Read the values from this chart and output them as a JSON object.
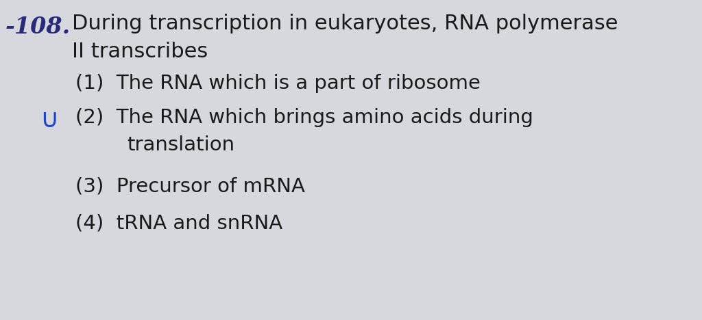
{
  "background_color": "#d6d8de",
  "q_number_text": "-108.",
  "q_number_color": "#2a2a7a",
  "title_line1": "During transcription in eukaryotes, RNA polymerase",
  "title_line2": "II transcribes",
  "option1": "(1)  The RNA which is a part of ribosome",
  "option2_num": "(2)  The RNA which brings amino acids during",
  "option2_cont": "translation",
  "option3": "(3)  Precursor of mRNA",
  "option4": "(4)  tRNA and snRNA",
  "checkmark": "∪",
  "checkmark_color": "#2244cc",
  "text_color": "#1a1a1a",
  "title_fontsize": 22,
  "option_fontsize": 21,
  "qnum_fontsize": 24
}
